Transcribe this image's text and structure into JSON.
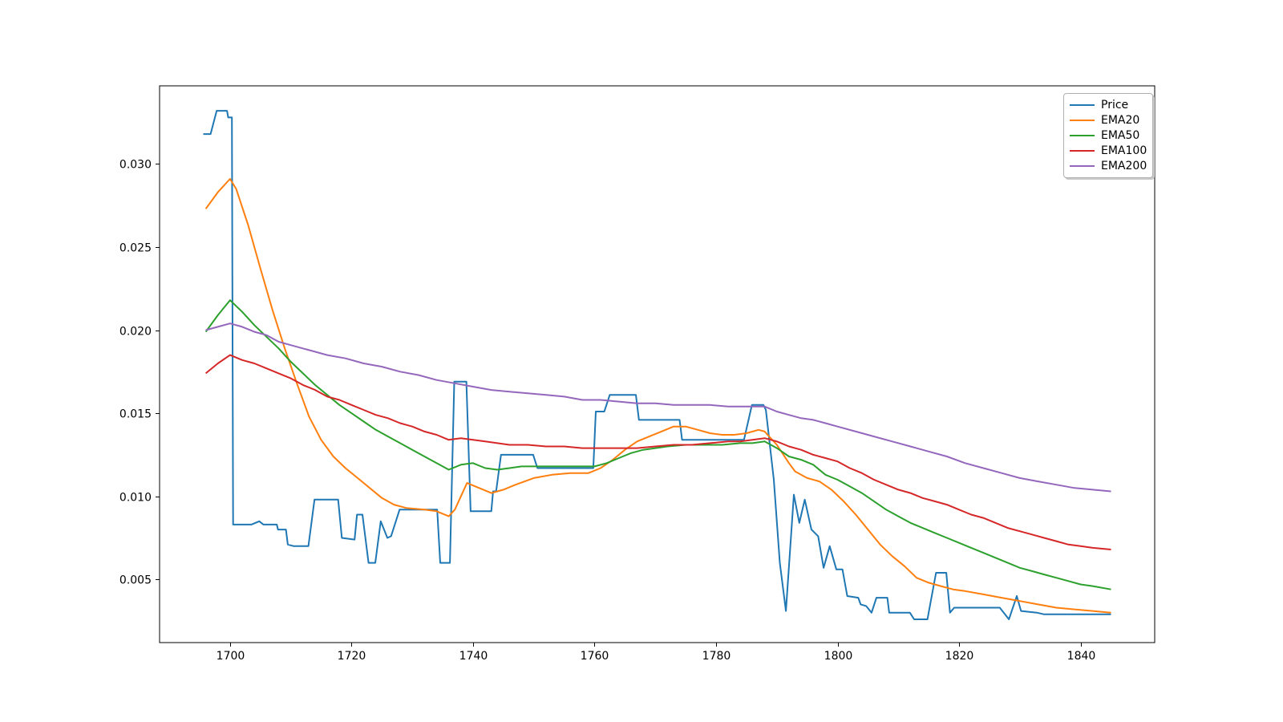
{
  "chart_data": {
    "type": "line",
    "title": "",
    "xlabel": "",
    "ylabel": "",
    "grid": false,
    "background": "#ffffff",
    "xlim": [
      1688.4,
      1852.2
    ],
    "ylim": [
      0.0012,
      0.0347
    ],
    "x_ticks": [
      1700,
      1720,
      1740,
      1760,
      1780,
      1800,
      1820,
      1840
    ],
    "x_tick_labels": [
      "1700",
      "1720",
      "1740",
      "1760",
      "1780",
      "1800",
      "1820",
      "1840"
    ],
    "y_ticks": [
      0.005,
      0.01,
      0.015,
      0.02,
      0.025,
      0.03
    ],
    "y_tick_labels": [
      "0.005",
      "0.010",
      "0.015",
      "0.020",
      "0.025",
      "0.030"
    ],
    "legend": {
      "position": "upper-right",
      "entries": [
        "Price",
        "EMA20",
        "EMA50",
        "EMA100",
        "EMA200"
      ]
    },
    "series": [
      {
        "name": "Price",
        "color": "#1f77b4",
        "x": [
          1695.6,
          1696.8,
          1697.8,
          1699.5,
          1699.7,
          1700.3,
          1700.5,
          1703.5,
          1704.8,
          1705.5,
          1707.7,
          1707.9,
          1709.2,
          1709.5,
          1710.5,
          1712.9,
          1713.9,
          1717.8,
          1718.4,
          1720.5,
          1720.9,
          1721.8,
          1722.8,
          1723.9,
          1724.8,
          1725.9,
          1726.5,
          1727.9,
          1734.1,
          1734.6,
          1736.2,
          1736.9,
          1738.9,
          1739.6,
          1743.0,
          1743.3,
          1743.8,
          1744.6,
          1749.9,
          1750.6,
          1759.8,
          1760.2,
          1761.6,
          1762.5,
          1766.8,
          1767.3,
          1774.0,
          1774.4,
          1784.6,
          1785.9,
          1787.8,
          1788.2,
          1789.5,
          1790.5,
          1791.5,
          1792.8,
          1793.7,
          1794.6,
          1795.7,
          1796.8,
          1797.7,
          1798.7,
          1799.8,
          1800.8,
          1801.6,
          1803.4,
          1803.8,
          1804.7,
          1805.6,
          1806.4,
          1808.2,
          1808.5,
          1811.9,
          1812.6,
          1814.8,
          1816.2,
          1817.9,
          1818.5,
          1819.2,
          1826.7,
          1828.2,
          1829.5,
          1830.2,
          1832.8,
          1834.0,
          1845.0
        ],
        "y": [
          0.0318,
          0.0318,
          0.0332,
          0.0332,
          0.0328,
          0.0328,
          0.0083,
          0.0083,
          0.0085,
          0.0083,
          0.0083,
          0.008,
          0.008,
          0.0071,
          0.007,
          0.007,
          0.0098,
          0.0098,
          0.0075,
          0.0074,
          0.0089,
          0.0089,
          0.006,
          0.006,
          0.0085,
          0.0075,
          0.0076,
          0.0092,
          0.0092,
          0.006,
          0.006,
          0.0169,
          0.0169,
          0.0091,
          0.0091,
          0.0103,
          0.0103,
          0.0125,
          0.0125,
          0.0117,
          0.0117,
          0.0151,
          0.0151,
          0.0161,
          0.0161,
          0.0146,
          0.0146,
          0.0134,
          0.0134,
          0.0155,
          0.0155,
          0.0152,
          0.011,
          0.006,
          0.0031,
          0.0101,
          0.0084,
          0.0098,
          0.008,
          0.0076,
          0.0057,
          0.007,
          0.0056,
          0.0056,
          0.004,
          0.0039,
          0.0035,
          0.0034,
          0.003,
          0.0039,
          0.0039,
          0.003,
          0.003,
          0.0026,
          0.0026,
          0.0054,
          0.0054,
          0.003,
          0.0033,
          0.0033,
          0.0026,
          0.004,
          0.0031,
          0.003,
          0.0029,
          0.0029
        ]
      },
      {
        "name": "EMA20",
        "color": "#ff7f0e",
        "x": [
          1696,
          1698,
          1700,
          1701,
          1703,
          1705,
          1707,
          1709,
          1711,
          1713,
          1715,
          1717,
          1719,
          1721,
          1723,
          1725,
          1727,
          1729,
          1732,
          1734,
          1736,
          1737,
          1739,
          1741,
          1743,
          1745,
          1747,
          1750,
          1753,
          1756,
          1759,
          1761,
          1763,
          1765,
          1767,
          1769,
          1771,
          1773,
          1775,
          1777,
          1779,
          1781,
          1783,
          1785,
          1787,
          1788,
          1790,
          1792,
          1793,
          1795,
          1797,
          1799,
          1801,
          1803,
          1805,
          1807,
          1809,
          1811,
          1813,
          1815,
          1817,
          1819,
          1821,
          1824,
          1827,
          1830,
          1833,
          1836,
          1839,
          1842,
          1845
        ],
        "y": [
          0.0273,
          0.0283,
          0.0291,
          0.0285,
          0.0263,
          0.0237,
          0.0212,
          0.0189,
          0.0168,
          0.0148,
          0.0134,
          0.0124,
          0.0117,
          0.0111,
          0.0105,
          0.0099,
          0.0095,
          0.0093,
          0.0092,
          0.0091,
          0.0088,
          0.0092,
          0.0108,
          0.0105,
          0.0102,
          0.0104,
          0.0107,
          0.0111,
          0.0113,
          0.0114,
          0.0114,
          0.0117,
          0.0122,
          0.0128,
          0.0133,
          0.0136,
          0.0139,
          0.0142,
          0.0142,
          0.014,
          0.0138,
          0.0137,
          0.0137,
          0.0138,
          0.014,
          0.0139,
          0.0131,
          0.012,
          0.0115,
          0.0111,
          0.0109,
          0.0104,
          0.0097,
          0.0089,
          0.008,
          0.0071,
          0.0064,
          0.0058,
          0.0051,
          0.0048,
          0.0046,
          0.0044,
          0.0043,
          0.0041,
          0.0039,
          0.0037,
          0.0035,
          0.0033,
          0.0032,
          0.0031,
          0.003
        ]
      },
      {
        "name": "EMA50",
        "color": "#2ca02c",
        "x": [
          1696,
          1698,
          1700,
          1702,
          1704,
          1706,
          1708,
          1710,
          1712,
          1714,
          1716,
          1718,
          1720,
          1722,
          1724,
          1726,
          1728,
          1730,
          1732,
          1734,
          1736,
          1738,
          1740,
          1742,
          1744,
          1746,
          1748,
          1752,
          1756,
          1760,
          1762,
          1764,
          1766,
          1768,
          1770,
          1772,
          1775,
          1778,
          1781,
          1784,
          1786,
          1788,
          1790,
          1792,
          1794,
          1796,
          1798,
          1800,
          1802,
          1804,
          1806,
          1808,
          1810,
          1812,
          1814,
          1816,
          1818,
          1820,
          1822,
          1824,
          1826,
          1828,
          1830,
          1832,
          1834,
          1836,
          1838,
          1840,
          1842,
          1845
        ],
        "y": [
          0.0199,
          0.0209,
          0.0218,
          0.0211,
          0.0203,
          0.0196,
          0.0189,
          0.0181,
          0.0174,
          0.0167,
          0.0161,
          0.0155,
          0.015,
          0.0145,
          0.014,
          0.0136,
          0.0132,
          0.0128,
          0.0124,
          0.012,
          0.0116,
          0.0119,
          0.012,
          0.0117,
          0.0116,
          0.0117,
          0.0118,
          0.0118,
          0.0118,
          0.0118,
          0.012,
          0.0123,
          0.0126,
          0.0128,
          0.0129,
          0.013,
          0.0131,
          0.0131,
          0.0131,
          0.0132,
          0.0132,
          0.0133,
          0.0129,
          0.0124,
          0.0122,
          0.0119,
          0.0113,
          0.011,
          0.0106,
          0.0102,
          0.0097,
          0.0092,
          0.0088,
          0.0084,
          0.0081,
          0.0078,
          0.0075,
          0.0072,
          0.0069,
          0.0066,
          0.0063,
          0.006,
          0.0057,
          0.0055,
          0.0053,
          0.0051,
          0.0049,
          0.0047,
          0.0046,
          0.0044
        ]
      },
      {
        "name": "EMA100",
        "color": "#d62728",
        "x": [
          1696,
          1698,
          1700,
          1702,
          1704,
          1706,
          1708,
          1710,
          1712,
          1714,
          1716,
          1718,
          1720,
          1722,
          1724,
          1726,
          1728,
          1730,
          1732,
          1734,
          1736,
          1738,
          1740,
          1742,
          1744,
          1746,
          1749,
          1752,
          1755,
          1758,
          1761,
          1764,
          1767,
          1770,
          1773,
          1776,
          1779,
          1782,
          1784,
          1786,
          1788,
          1790,
          1792,
          1794,
          1796,
          1798,
          1800,
          1802,
          1804,
          1806,
          1808,
          1810,
          1812,
          1814,
          1816,
          1818,
          1820,
          1822,
          1824,
          1826,
          1828,
          1830,
          1832,
          1834,
          1836,
          1838,
          1840,
          1842,
          1845
        ],
        "y": [
          0.0174,
          0.018,
          0.0185,
          0.0182,
          0.018,
          0.0177,
          0.0174,
          0.0171,
          0.0167,
          0.0164,
          0.016,
          0.0158,
          0.0155,
          0.0152,
          0.0149,
          0.0147,
          0.0144,
          0.0142,
          0.0139,
          0.0137,
          0.0134,
          0.0135,
          0.0134,
          0.0133,
          0.0132,
          0.0131,
          0.0131,
          0.013,
          0.013,
          0.0129,
          0.0129,
          0.0129,
          0.0129,
          0.013,
          0.0131,
          0.0131,
          0.0132,
          0.0133,
          0.0133,
          0.0134,
          0.0135,
          0.0133,
          0.013,
          0.0128,
          0.0125,
          0.0123,
          0.0121,
          0.0117,
          0.0114,
          0.011,
          0.0107,
          0.0104,
          0.0102,
          0.0099,
          0.0097,
          0.0095,
          0.0092,
          0.0089,
          0.0087,
          0.0084,
          0.0081,
          0.0079,
          0.0077,
          0.0075,
          0.0073,
          0.0071,
          0.007,
          0.0069,
          0.0068
        ]
      },
      {
        "name": "EMA200",
        "color": "#9467bd",
        "x": [
          1696,
          1698,
          1700,
          1702,
          1704,
          1706,
          1708,
          1710,
          1713,
          1716,
          1719,
          1722,
          1725,
          1728,
          1731,
          1734,
          1737,
          1740,
          1743,
          1746,
          1749,
          1752,
          1755,
          1758,
          1761,
          1764,
          1767,
          1770,
          1773,
          1776,
          1779,
          1782,
          1785,
          1788,
          1790,
          1792,
          1794,
          1796,
          1798,
          1800,
          1803,
          1806,
          1809,
          1812,
          1815,
          1818,
          1821,
          1824,
          1827,
          1830,
          1833,
          1836,
          1839,
          1842,
          1845
        ],
        "y": [
          0.02,
          0.0202,
          0.0204,
          0.0202,
          0.0199,
          0.0197,
          0.0193,
          0.0191,
          0.0188,
          0.0185,
          0.0183,
          0.018,
          0.0178,
          0.0175,
          0.0173,
          0.017,
          0.0168,
          0.0166,
          0.0164,
          0.0163,
          0.0162,
          0.0161,
          0.016,
          0.0158,
          0.0158,
          0.0157,
          0.0156,
          0.0156,
          0.0155,
          0.0155,
          0.0155,
          0.0154,
          0.0154,
          0.0154,
          0.0151,
          0.0149,
          0.0147,
          0.0146,
          0.0144,
          0.0142,
          0.0139,
          0.0136,
          0.0133,
          0.013,
          0.0127,
          0.0124,
          0.012,
          0.0117,
          0.0114,
          0.0111,
          0.0109,
          0.0107,
          0.0105,
          0.0104,
          0.0103
        ]
      }
    ]
  }
}
